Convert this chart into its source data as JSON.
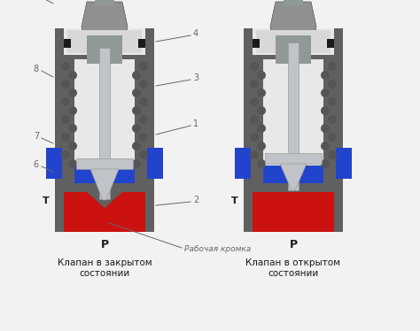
{
  "bg_color": "#f2f2f2",
  "body_gray": "#606060",
  "mid_gray": "#808080",
  "top_cap_gray": "#909090",
  "inner_gray": "#a8a8a8",
  "blue": "#2244cc",
  "blue_light": "#4466ee",
  "red": "#cc1111",
  "silver": "#c0c4c8",
  "silver_dark": "#909898",
  "white_inner": "#e8e8e8",
  "ball_gray": "#555555",
  "black": "#1a1a1a",
  "ann_color": "#666666",
  "label1_closed": "Клапан в закрытом\nсостоянии",
  "label1_open": "Клапан в открытом\nсостоянии",
  "label_P": "Р",
  "label_T": "Т",
  "label_rabochaya": "Рабочая кромка",
  "figsize": [
    4.74,
    3.74
  ],
  "dpi": 100
}
